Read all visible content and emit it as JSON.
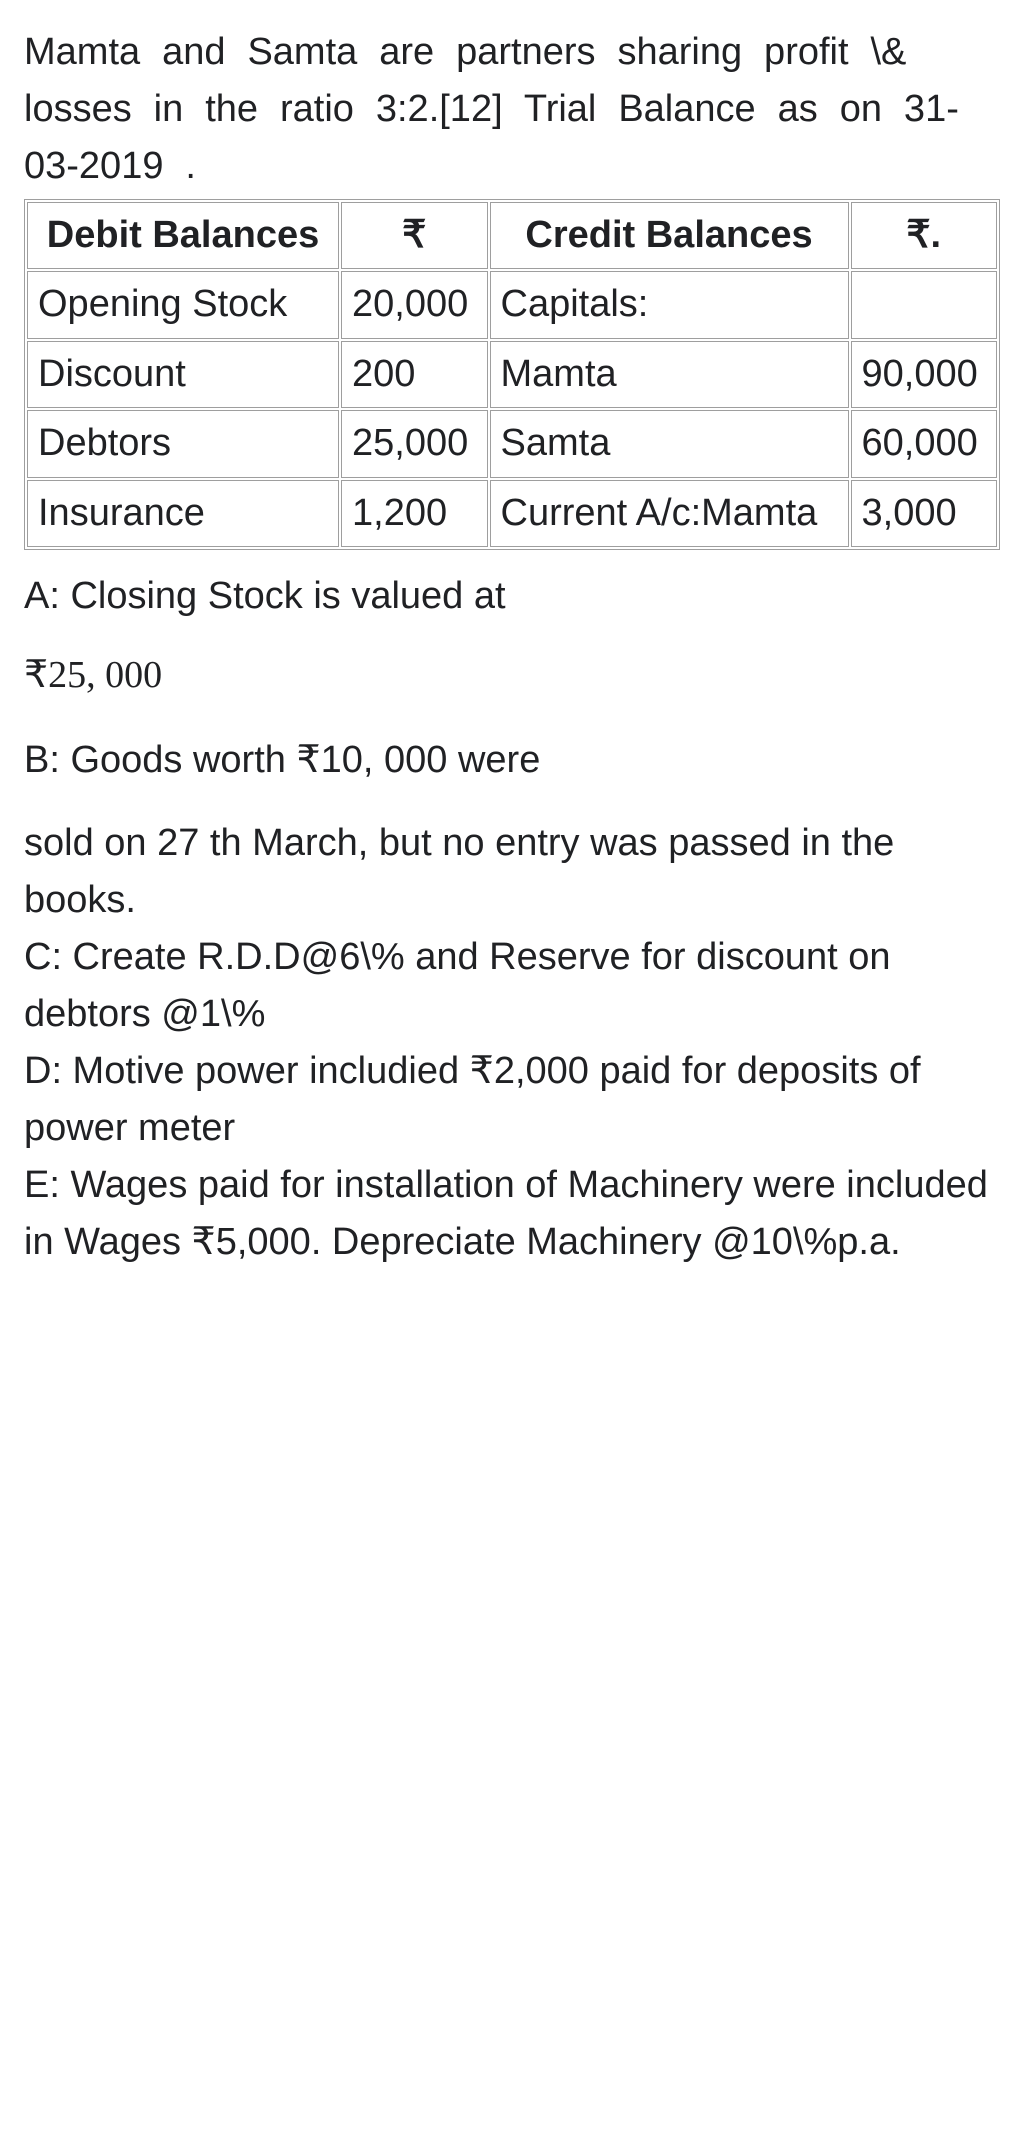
{
  "intro": "Mamta and Samta are partners sharing profit \\& losses in the ratio 3:2.[12] Trial Balance as on 31-03-2019 .",
  "table": {
    "headers": {
      "col1": "Debit Balances",
      "col2": "₹",
      "col3": "Credit Balances",
      "col4": "₹."
    },
    "rows": [
      {
        "c1": "Opening Stock",
        "c2": "20,000",
        "c3": "Capitals:",
        "c4": ""
      },
      {
        "c1": "Discount",
        "c2": "200",
        "c3": "Mamta",
        "c4": "90,000"
      },
      {
        "c1": "Debtors",
        "c2": "25,000",
        "c3": "Samta",
        "c4": "60,000"
      },
      {
        "c1": "Insurance",
        "c2": "1,200",
        "c3": "Current A/c:Mamta",
        "c4": "3,000"
      }
    ]
  },
  "adjustments": {
    "a_label": "A: Closing Stock is valued at",
    "a_value": "₹25, 000",
    "b_line1": "B: Goods worth ₹10, 000 were",
    "b_line2": "sold on 27 th March, but no entry was passed in the books.",
    "c": "C: Create R.D.D@6\\% and Reserve for discount on debtors @1\\%",
    "d": "D: Motive power includied ₹2,000 paid for deposits of power meter",
    "e": "E: Wages paid for installation of Machinery were included in Wages ₹5,000. Depreciate Machinery @10\\%p.a."
  }
}
